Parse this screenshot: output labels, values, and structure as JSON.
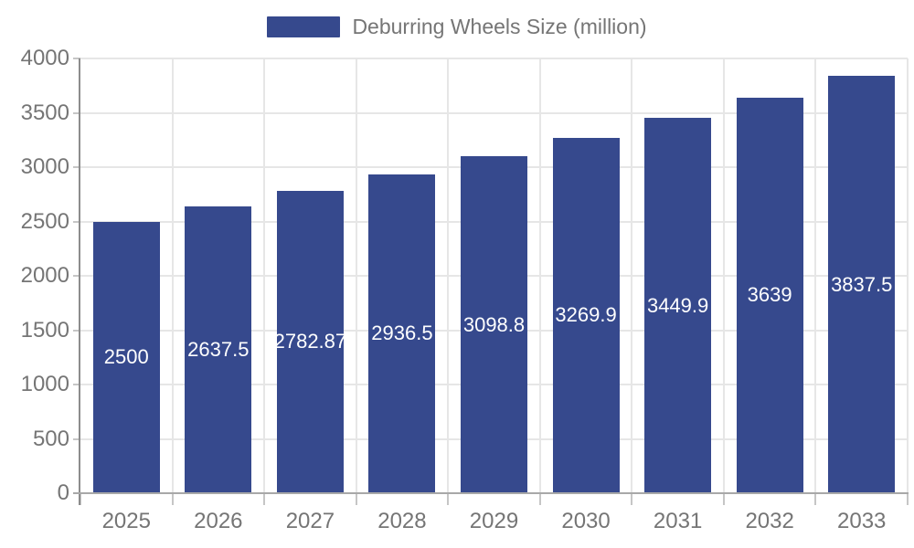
{
  "chart_data": {
    "type": "bar",
    "legend": "Deburring Wheels Size (million)",
    "categories": [
      "2025",
      "2026",
      "2027",
      "2028",
      "2029",
      "2030",
      "2031",
      "2032",
      "2033"
    ],
    "values": [
      2500,
      2637.5,
      2782.87,
      2936.5,
      3098.8,
      3269.9,
      3449.9,
      3639,
      3837.5
    ],
    "bar_labels": [
      "2500",
      "2637.5",
      "2782.87",
      "2936.5",
      "3098.8",
      "3269.9",
      "3449.9",
      "3639",
      "3837.5"
    ],
    "yticks": [
      0,
      500,
      1000,
      1500,
      2000,
      2500,
      3000,
      3500,
      4000
    ],
    "ylim": [
      0,
      4000
    ],
    "grid": true,
    "legend_position": "top-center",
    "colors": {
      "bar": "#36498D",
      "bar_label": "#ffffff",
      "gridline": "#e6e6e6",
      "axis_line": "#a8a8a8",
      "tick_mark": "#c6c6c6",
      "tick_text": "#757575",
      "legend_text": "#757575"
    }
  }
}
